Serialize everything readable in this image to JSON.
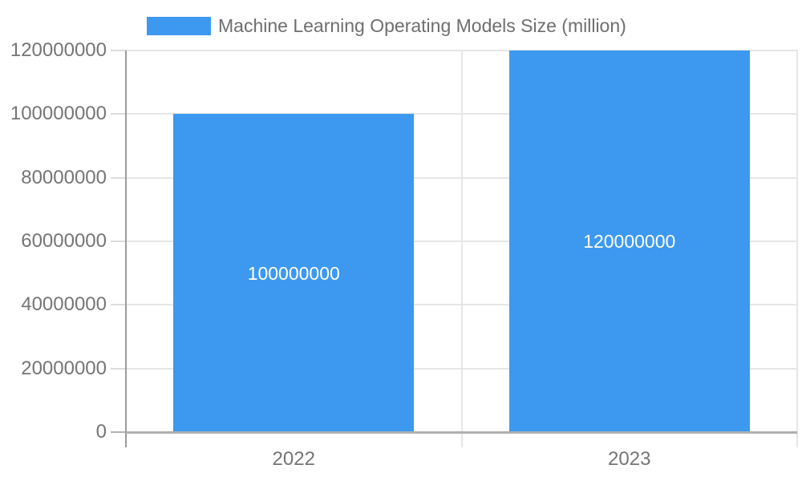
{
  "chart_data": {
    "type": "bar",
    "title": "Machine Learning Operating Models Size (million)",
    "categories": [
      "2022",
      "2023"
    ],
    "series": [
      {
        "name": "Machine Learning Operating Models Size (million)",
        "values": [
          100000000,
          120000000
        ]
      }
    ],
    "bar_value_labels": [
      "100000000",
      "120000000"
    ],
    "x_tick_labels": [
      "2022",
      "2023"
    ],
    "yticks": [
      0,
      20000000,
      40000000,
      60000000,
      80000000,
      100000000,
      120000000
    ],
    "y_tick_labels": [
      "0",
      "20000000",
      "40000000",
      "60000000",
      "80000000",
      "100000000",
      "120000000"
    ],
    "ylim": [
      0,
      120000000
    ],
    "xlabel": "",
    "ylabel": "",
    "grid": true,
    "legend_position": "top-left"
  },
  "colors": {
    "bar": "#3D99F0",
    "axis_text": "#757575",
    "legend_text": "#6E6E6E",
    "bar_label_text": "#FFFFFF",
    "gridline": "#E6E6E6",
    "tick": "#DCDCDC",
    "y_axis_line": "#9B9B9B",
    "baseline": "#B0B0B0",
    "background": "#FFFFFF"
  }
}
